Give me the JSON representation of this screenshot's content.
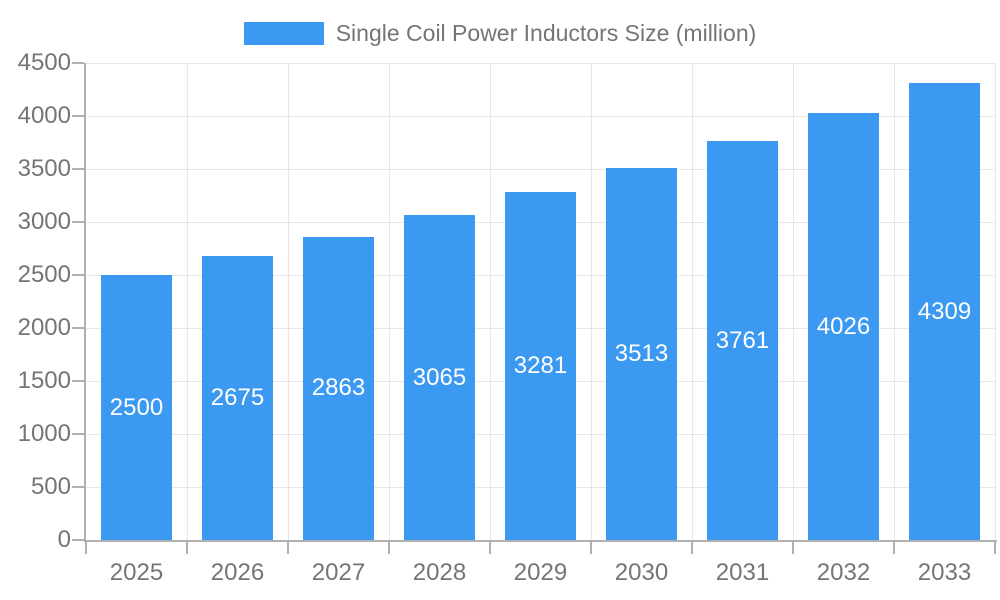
{
  "legend": {
    "label": "Single Coil Power Inductors Size (million)"
  },
  "chart_data": {
    "type": "bar",
    "title": "Single Coil Power Inductors Size (million)",
    "categories": [
      "2025",
      "2026",
      "2027",
      "2028",
      "2029",
      "2030",
      "2031",
      "2032",
      "2033"
    ],
    "values": [
      2500,
      2675,
      2863,
      3065,
      3281,
      3513,
      3761,
      4026,
      4309
    ],
    "xlabel": "",
    "ylabel": "",
    "ylim": [
      0,
      4500
    ],
    "ytick_step": 500,
    "ytick_labels": [
      "0",
      "500",
      "1000",
      "1500",
      "2000",
      "2500",
      "3000",
      "3500",
      "4000",
      "4500"
    ],
    "grid": true,
    "legend_position": "top-center",
    "value_labels": "inside-center",
    "colors": {
      "bar": "#3B99F1",
      "value_label": "#ffffff",
      "axis_text": "#757575",
      "axis_line": "#b0b0b0",
      "gridline": "#e6e6e6",
      "background": "#ffffff"
    }
  }
}
